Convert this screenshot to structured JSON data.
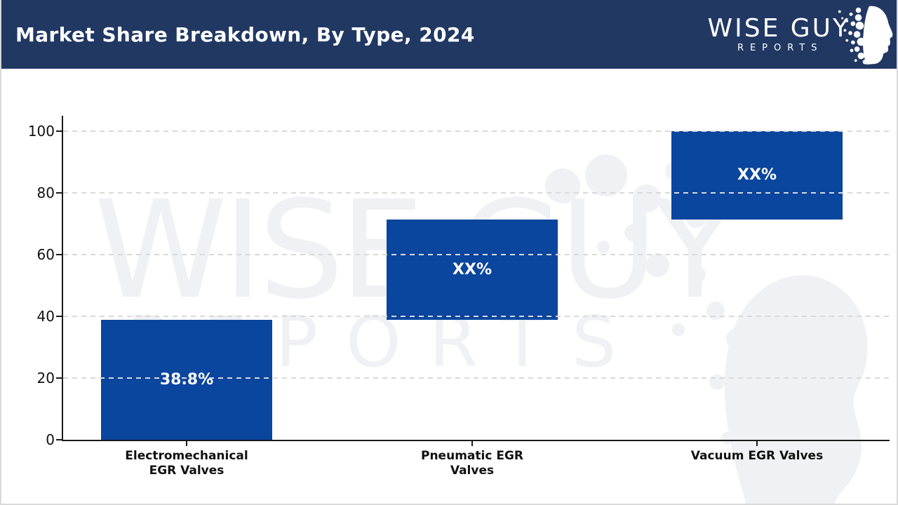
{
  "header": {
    "title": "Market Share Breakdown, By Type, 2024",
    "logo": {
      "line1": "WISE GUY",
      "line2": "REPORTS"
    }
  },
  "watermark": {
    "line1": "WISE GUY",
    "line2": "REPORTS"
  },
  "chart_data": {
    "type": "bar",
    "subtype": "floating-waterfall",
    "title": "Market Share Breakdown, By Type, 2024",
    "xlabel": "",
    "ylabel": "",
    "ylim": [
      0,
      105
    ],
    "yticks": [
      0,
      20,
      40,
      60,
      80,
      100
    ],
    "grid": "horizontal-dashed",
    "legend": "none",
    "bar_color": "#0a459e",
    "bar_label_color": "#ffffff",
    "categories": [
      "Electromechanical EGR Valves",
      "Pneumatic EGR Valves",
      "Vacuum EGR Valves"
    ],
    "category_lines": [
      [
        "Electromechanical",
        "EGR Valves"
      ],
      [
        "Pneumatic EGR",
        "Valves"
      ],
      [
        "Vacuum EGR Valves"
      ]
    ],
    "bars": [
      {
        "category": "Electromechanical EGR Valves",
        "start": 0,
        "end": 38.8,
        "label": "38.8%"
      },
      {
        "category": "Pneumatic EGR Valves",
        "start": 38.8,
        "end": 71.4,
        "label": "XX%"
      },
      {
        "category": "Vacuum EGR Valves",
        "start": 71.4,
        "end": 100,
        "label": "XX%"
      }
    ]
  },
  "colors": {
    "header_bg": "#213863",
    "bar": "#0a459e",
    "grid": "#d9d9d9",
    "axis": "#1a1a1a",
    "watermark": "#eff1f4",
    "page_border": "#d9d9d9",
    "title_text": "#ffffff"
  }
}
